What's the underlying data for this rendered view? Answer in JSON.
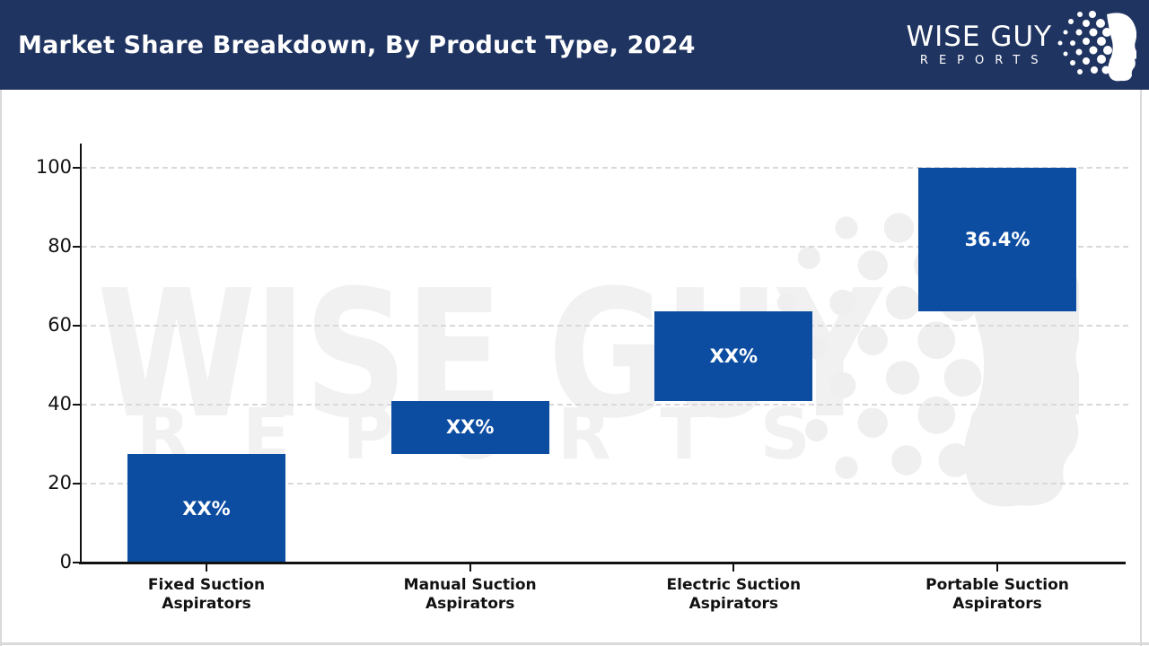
{
  "header": {
    "title": "Market Share Breakdown, By Product Type, 2024",
    "logo": {
      "line1": "WISE GUY",
      "line2": "REPORTS"
    }
  },
  "watermark": {
    "line1": "WISE GUY",
    "line2": "REPORTS"
  },
  "colors": {
    "header_bg": "#1f3461",
    "bar_blue": "#0d4da1",
    "grid_gray": "#d9d9d9",
    "watermark_gray": "#f1f1f1"
  },
  "chart_data": {
    "type": "bar",
    "subtype": "waterfall",
    "title": "Market Share Breakdown, By Product Type, 2024",
    "categories": [
      "Fixed Suction Aspirators",
      "Manual Suction Aspirators",
      "Electric Suction Aspirators",
      "Portable Suction Aspirators"
    ],
    "category_label_lines": [
      [
        "Fixed Suction",
        "Aspirators"
      ],
      [
        "Manual Suction",
        "Aspirators"
      ],
      [
        "Electric Suction",
        "Aspirators"
      ],
      [
        "Portable Suction",
        "Aspirators"
      ]
    ],
    "segments": [
      {
        "category": "Fixed Suction Aspirators",
        "start": 0,
        "end": 27.5,
        "value": 27.5,
        "label": "XX%"
      },
      {
        "category": "Manual Suction Aspirators",
        "start": 27.5,
        "end": 41,
        "value": 13.5,
        "label": "XX%"
      },
      {
        "category": "Electric Suction Aspirators",
        "start": 41,
        "end": 63.6,
        "value": 22.6,
        "label": "XX%"
      },
      {
        "category": "Portable Suction Aspirators",
        "start": 63.6,
        "end": 100,
        "value": 36.4,
        "label": "36.4%"
      }
    ],
    "yticks": [
      0,
      20,
      40,
      60,
      80,
      100
    ],
    "ylim": [
      0,
      106
    ],
    "xlabel": "",
    "ylabel": "",
    "grid": {
      "horizontal": true,
      "style": "dashed"
    },
    "legend": null,
    "bar_color": "#0d4da1",
    "bar_label_color": "#ffffff"
  }
}
